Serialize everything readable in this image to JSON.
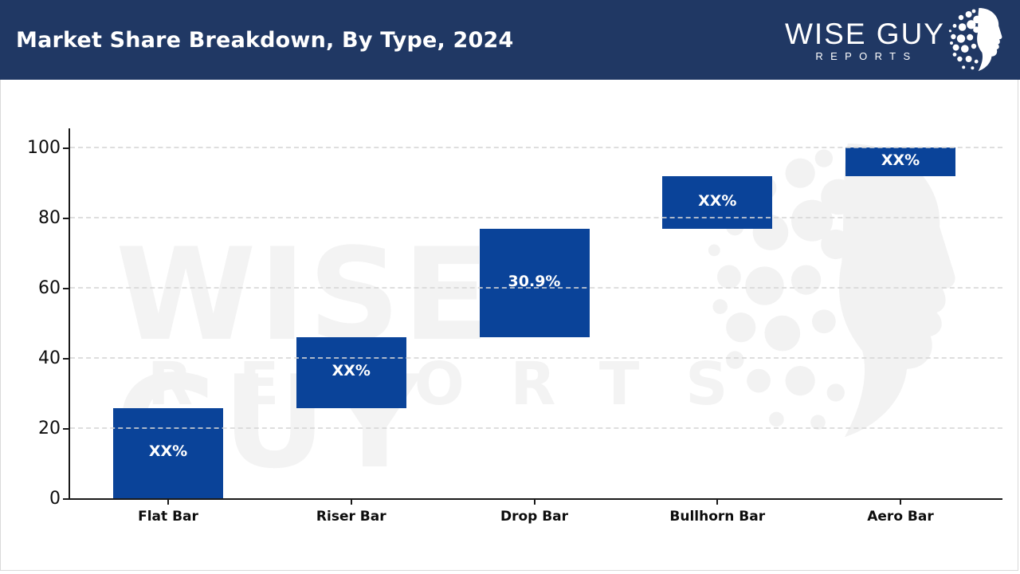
{
  "header": {
    "title": "Market Share Breakdown, By Type, 2024",
    "logo": {
      "line1": "WISE GUY",
      "line2": "REPORTS"
    },
    "bg_color": "#203864"
  },
  "watermark": {
    "line1": "WISE GUY",
    "line2": "REPORTS"
  },
  "chart_data": {
    "type": "bar",
    "subtype": "waterfall",
    "title": "Market Share Breakdown, By Type, 2024",
    "categories": [
      "Flat Bar",
      "Riser Bar",
      "Drop Bar",
      "Bullhorn Bar",
      "Aero Bar"
    ],
    "bar_starts": [
      0,
      25.7,
      45.9,
      76.8,
      91.9
    ],
    "bar_ends": [
      25.7,
      45.9,
      76.8,
      91.9,
      100
    ],
    "bar_value_labels": [
      "XX%",
      "XX%",
      "30.9%",
      "XX%",
      "XX%"
    ],
    "xlabel": "",
    "ylabel": "",
    "ylim": [
      0,
      105
    ],
    "yticks": [
      0,
      20,
      40,
      60,
      80,
      100
    ],
    "grid": "horizontal-dashed",
    "legend": "none",
    "bar_color": "#0a4399",
    "value_label_color": "#ffffff",
    "grid_color": "#d6d6d6",
    "axis_color": "#1a1a1a"
  }
}
